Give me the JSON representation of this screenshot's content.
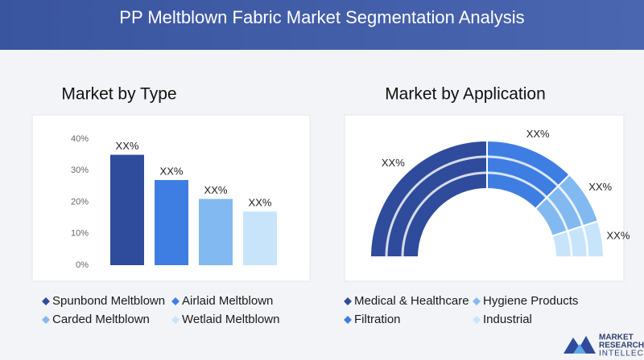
{
  "header": {
    "title": "PP Meltblown Fabric Market Segmentation Analysis"
  },
  "chart_data": [
    {
      "type": "bar",
      "title": "Market by Type",
      "categories": [
        "Spunbond Meltblown",
        "Airlaid Meltblown",
        "Carded Meltblown",
        "Wetlaid Meltblown"
      ],
      "values": [
        35,
        27,
        21,
        17
      ],
      "value_labels": [
        "XX%",
        "XX%",
        "XX%",
        "XX%"
      ],
      "colors": [
        "#2f4b9c",
        "#3e7ee2",
        "#82b9f0",
        "#c8e4fa"
      ],
      "ylim": [
        0,
        40
      ],
      "yticks": [
        {
          "value": 0,
          "label": "0%"
        },
        {
          "value": 10,
          "label": "10%"
        },
        {
          "value": 20,
          "label": "20%"
        },
        {
          "value": 30,
          "label": "30%"
        },
        {
          "value": 40,
          "label": "40%"
        }
      ]
    },
    {
      "type": "donut",
      "title": "Market by Application",
      "categories": [
        "Medical & Healthcare",
        "Filtration",
        "Hygiene Products",
        "Industrial"
      ],
      "values": [
        50,
        25,
        15,
        10
      ],
      "value_labels": [
        "XX%",
        "XX%",
        "XX%",
        "XX%"
      ],
      "colors": [
        "#2f4b9c",
        "#3e7ee2",
        "#82b9f0",
        "#c8e4fa"
      ]
    }
  ],
  "logo": {
    "lines": [
      "MARKET",
      "RESEARCH",
      "INTELLECT"
    ]
  }
}
